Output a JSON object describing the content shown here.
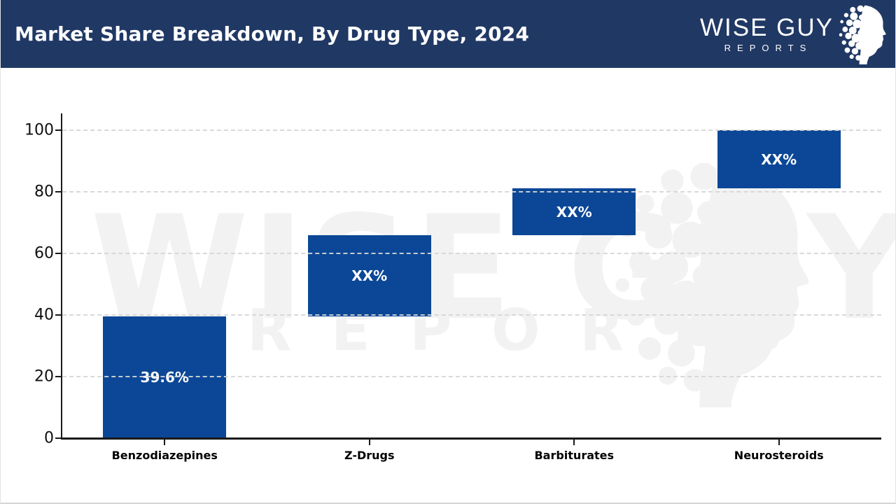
{
  "header": {
    "title": "Market Share Breakdown, By Drug Type, 2024",
    "bg_color": "#203864",
    "logo": {
      "name": "WISE GUY",
      "sub": "REPORTS"
    }
  },
  "watermark": {
    "name": "WISE GUY",
    "sub": "R E P O R T S"
  },
  "chart_data": {
    "type": "bar",
    "variant": "waterfall",
    "title": "Market Share Breakdown, By Drug Type, 2024",
    "categories": [
      "Benzodiazepines",
      "Z-Drugs",
      "Barbiturates",
      "Neurosteroids"
    ],
    "segments": [
      {
        "category": "Benzodiazepines",
        "start": 0,
        "end": 39.6,
        "label": "39.6%"
      },
      {
        "category": "Z-Drugs",
        "start": 39.6,
        "end": 65.9,
        "label": "XX%"
      },
      {
        "category": "Barbiturates",
        "start": 65.9,
        "end": 81.1,
        "label": "XX%"
      },
      {
        "category": "Neurosteroids",
        "start": 81.1,
        "end": 100,
        "label": "XX%"
      }
    ],
    "ylim": [
      0,
      100
    ],
    "yticks": [
      0,
      20,
      40,
      60,
      80,
      100
    ],
    "grid": {
      "axis": "y",
      "style": "dashed",
      "color": "#d9d9d9",
      "above_bars": true
    },
    "bar_color": "#0b4796",
    "bar_label_color": "#ffffff",
    "axis_color": "#1a1a1a",
    "tick_label_color": "#111111",
    "xlabel": "",
    "ylabel": "",
    "legend": "none"
  }
}
